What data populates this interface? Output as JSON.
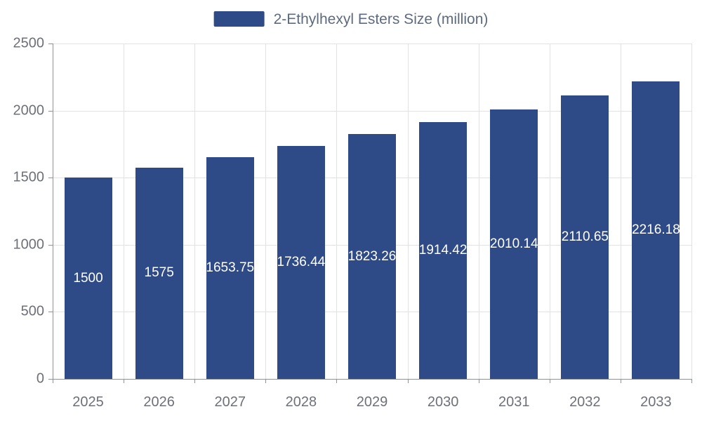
{
  "chart_data": {
    "type": "bar",
    "title": "2-Ethylhexyl Esters Size (million)",
    "categories": [
      "2025",
      "2026",
      "2027",
      "2028",
      "2029",
      "2030",
      "2031",
      "2032",
      "2033"
    ],
    "values": [
      1500,
      1575,
      1653.75,
      1736.44,
      1823.26,
      1914.42,
      2010.14,
      2110.65,
      2216.18
    ],
    "value_labels": [
      "1500",
      "1575",
      "1653.75",
      "1736.44",
      "1823.26",
      "1914.42",
      "2010.14",
      "2110.65",
      "2216.18"
    ],
    "xlabel": "",
    "ylabel": "",
    "ylim": [
      0,
      2500
    ],
    "yticks": [
      0,
      500,
      1000,
      1500,
      2000,
      2500
    ],
    "ytick_labels": [
      "0",
      "500",
      "1000",
      "1500",
      "2000",
      "2500"
    ],
    "grid": true,
    "legend_position": "top-center"
  },
  "colors": {
    "bar": "#2e4a87",
    "bar_value_label": "#ffffff",
    "legend_text": "#5c6b80",
    "tick_label": "#6e7079",
    "grid_line": "#e2e2e2",
    "axis_line": "#8f9399",
    "background": "#ffffff"
  }
}
